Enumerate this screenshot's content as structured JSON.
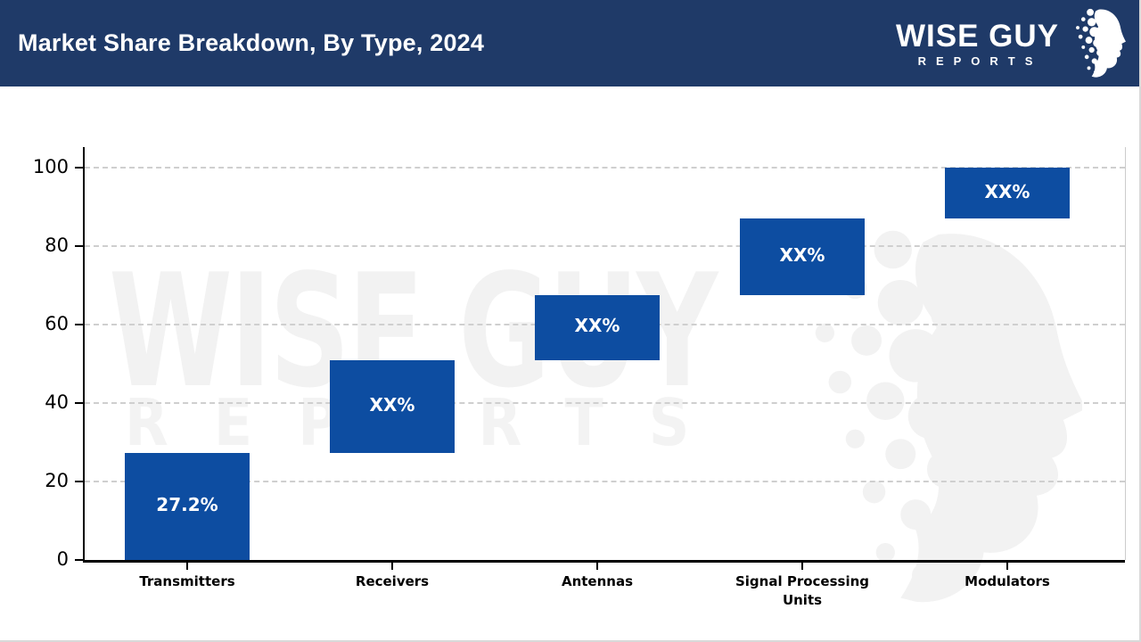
{
  "header": {
    "title": "Market Share Breakdown, By Type, 2024",
    "logo": {
      "line1": "WISE GUY",
      "line2": "REPORTS"
    }
  },
  "watermark": {
    "line1": "WISE GUY",
    "line2": "REPORTS"
  },
  "colors": {
    "header_bg": "#1f3a68",
    "bar": "#0d4da1",
    "grid": "#cfcfcf",
    "axis": "#000000",
    "watermark": "#f2f2f2"
  },
  "chart_data": {
    "type": "bar",
    "subtype": "waterfall-floating-segments",
    "title": "Market Share Breakdown, By Type, 2024",
    "xlabel": "",
    "ylabel": "",
    "ylim": [
      0,
      100
    ],
    "yticks": [
      0,
      20,
      40,
      60,
      80,
      100
    ],
    "grid": "horizontal dashed",
    "legend": "none",
    "categories": [
      "Transmitters",
      "Receivers",
      "Antennas",
      "Signal Processing Units",
      "Modulators"
    ],
    "segments": [
      {
        "category": "Transmitters",
        "start": 0,
        "end": 27.2,
        "label": "27.2%"
      },
      {
        "category": "Receivers",
        "start": 27.2,
        "end": 51,
        "label": "XX%"
      },
      {
        "category": "Antennas",
        "start": 51,
        "end": 67.5,
        "label": "XX%"
      },
      {
        "category": "Signal Processing Units",
        "start": 67.5,
        "end": 87,
        "label": "XX%"
      },
      {
        "category": "Modulators",
        "start": 87,
        "end": 100,
        "label": "XX%"
      }
    ]
  }
}
